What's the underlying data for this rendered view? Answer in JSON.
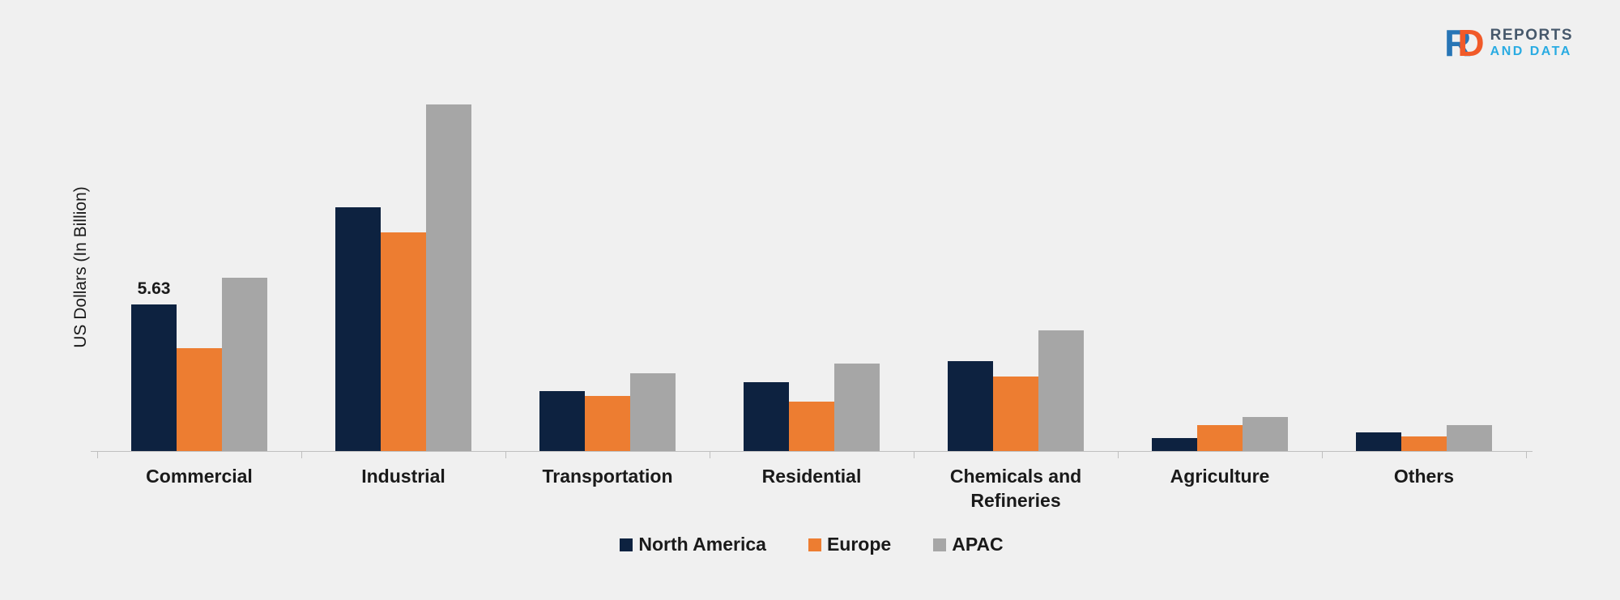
{
  "logo": {
    "mark_r": "R",
    "mark_d": "D",
    "line1": "REPORTS",
    "line2": "AND DATA"
  },
  "colors": {
    "background": "#f0f0f0",
    "axis": "#bfbfbf",
    "text": "#1a1a1a",
    "north_america": "#0d2240",
    "europe": "#ed7d31",
    "apac": "#a6a6a6"
  },
  "chart_data": {
    "type": "bar",
    "title": "",
    "xlabel": "",
    "ylabel": "US Dollars  (In Billion)",
    "ylim": [
      0,
      14
    ],
    "grid": false,
    "legend_position": "bottom",
    "categories": [
      "Commercial",
      "Industrial",
      "Transportation",
      "Residential",
      "Chemicals and Refineries",
      "Agriculture",
      "Others"
    ],
    "series": [
      {
        "name": "North America",
        "color": "#0d2240",
        "values": [
          5.63,
          9.35,
          2.3,
          2.65,
          3.45,
          0.5,
          0.7
        ]
      },
      {
        "name": "Europe",
        "color": "#ed7d31",
        "values": [
          3.95,
          8.4,
          2.1,
          1.9,
          2.85,
          1.0,
          0.55
        ]
      },
      {
        "name": "APAC",
        "color": "#a6a6a6",
        "values": [
          6.65,
          13.3,
          3.0,
          3.35,
          4.65,
          1.3,
          1.0
        ]
      }
    ],
    "annotations": [
      {
        "series": "North America",
        "category": "Commercial",
        "text": "5.63"
      }
    ]
  }
}
